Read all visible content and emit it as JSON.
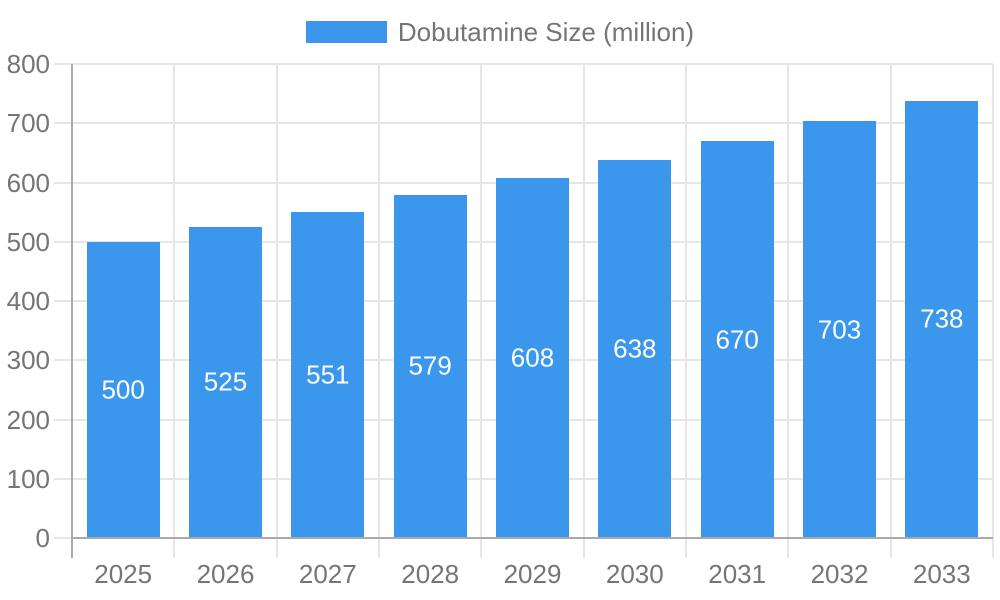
{
  "legend": {
    "label": "Dobutamine Size (million)"
  },
  "colors": {
    "bar": "#3a97eb",
    "axis_text": "#757575",
    "value_label": "#ffffff",
    "grid": "#e6e6e6",
    "axis_line": "#a9a9a9",
    "background": "#ffffff"
  },
  "chart_data": {
    "type": "bar",
    "title": "",
    "categories": [
      "2025",
      "2026",
      "2027",
      "2028",
      "2029",
      "2030",
      "2031",
      "2032",
      "2033"
    ],
    "series": [
      {
        "name": "Dobutamine Size (million)",
        "color": "#3a97eb",
        "values": [
          500,
          525,
          551,
          579,
          608,
          638,
          670,
          703,
          738
        ]
      }
    ],
    "xlabel": "",
    "ylabel": "",
    "ylim": [
      0,
      800
    ],
    "ytick_step": 100,
    "grid": true,
    "legend_position": "top",
    "value_label_position": "inside-center"
  }
}
